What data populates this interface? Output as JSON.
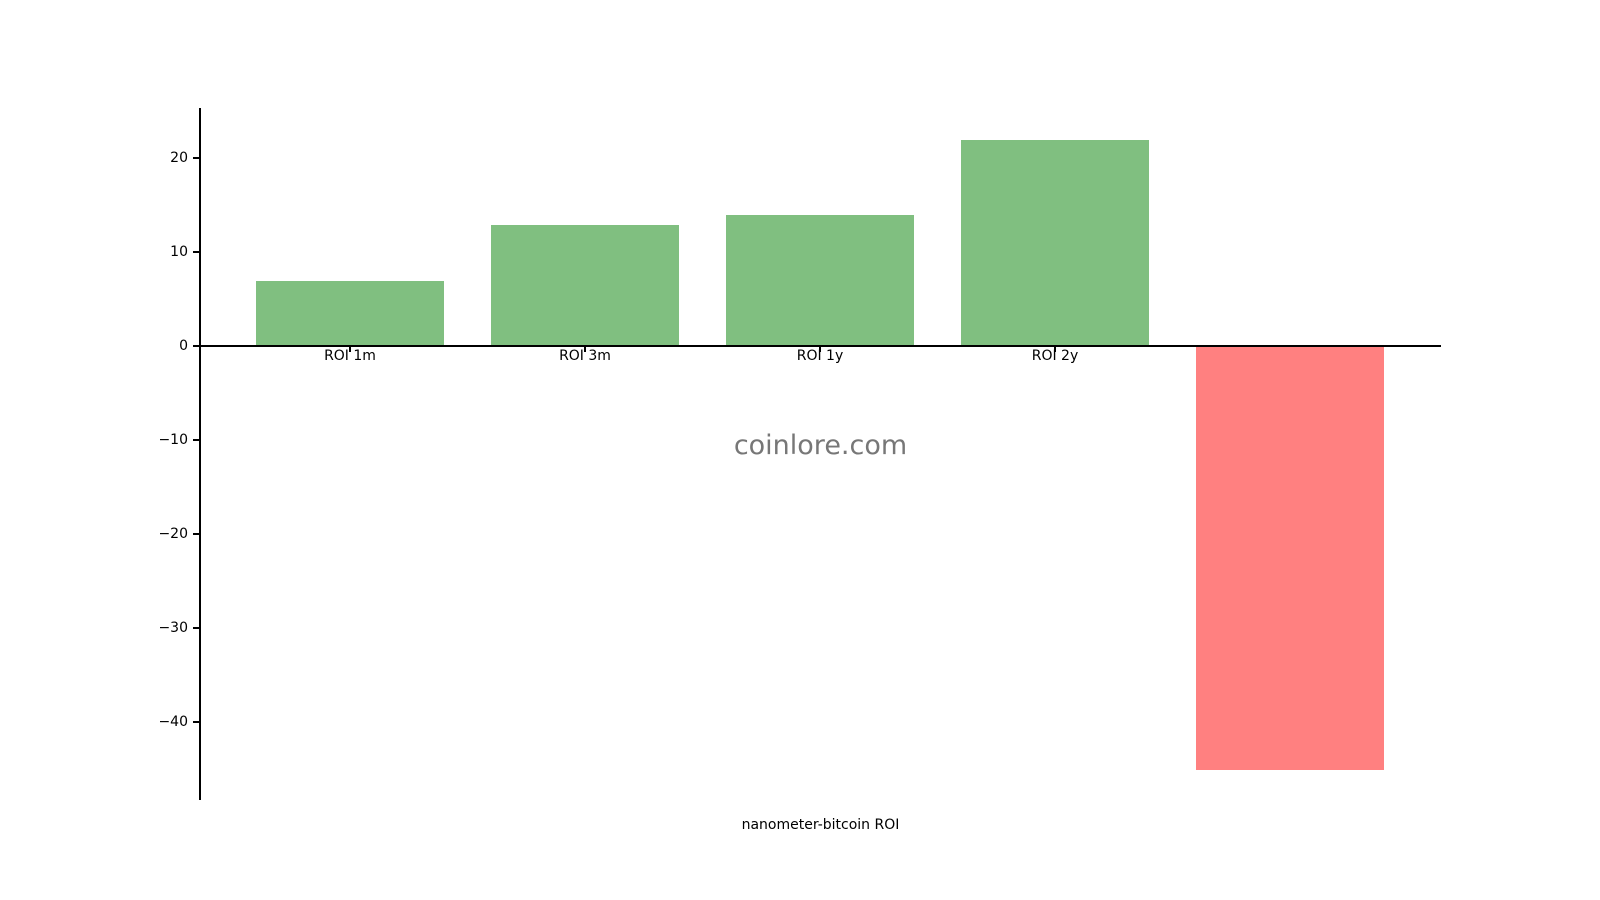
{
  "page": {
    "background_color": "#ffffff"
  },
  "watermark": {
    "text": "coinlore.com",
    "color": "#777777"
  },
  "chart_data": {
    "type": "bar",
    "title": "nanometer-bitcoin ROI",
    "title_position": "bottom",
    "categories": [
      "ROI 1m",
      "ROI 3m",
      "ROI 1y",
      "ROI 2y",
      ""
    ],
    "values": [
      7,
      13,
      14,
      22,
      -45
    ],
    "positive_color": "#80bf80",
    "negative_color": "#ff8080",
    "axis_color": "#000000",
    "yticks": [
      20,
      10,
      0,
      -10,
      -20,
      -30,
      -40
    ],
    "ytick_labels": [
      "20",
      "10",
      "0",
      "−10",
      "−20",
      "−30",
      "−40"
    ],
    "ylim": [
      -48.2,
      25.3
    ],
    "xlabel": "",
    "ylabel": "",
    "grid": false,
    "legend": "none"
  }
}
